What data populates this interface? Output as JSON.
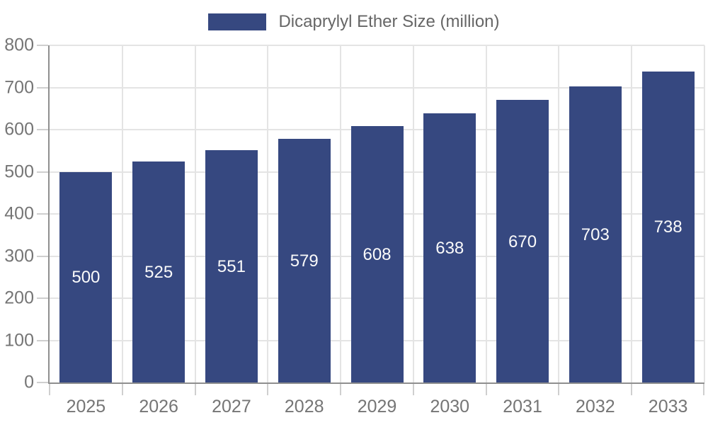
{
  "legend": {
    "label": "Dicaprylyl Ether Size (million)"
  },
  "colors": {
    "bar": "#364880",
    "axis_line": "#8f8f8f",
    "grid_line": "#e4e4e4",
    "tick_line": "#cfcfcf",
    "axis_label": "#757575",
    "legend_label": "#666666",
    "bar_label": "#fafafa",
    "background": "#ffffff"
  },
  "chart_data": {
    "type": "bar",
    "title": "",
    "legend_entries": [
      "Dicaprylyl Ether Size (million)"
    ],
    "legend_position": "top-center",
    "categories": [
      "2025",
      "2026",
      "2027",
      "2028",
      "2029",
      "2030",
      "2031",
      "2032",
      "2033"
    ],
    "values": [
      500,
      525,
      551,
      579,
      608,
      638,
      670,
      703,
      738
    ],
    "bar_value_labels": [
      "500",
      "525",
      "551",
      "579",
      "608",
      "638",
      "670",
      "703",
      "738"
    ],
    "bar_value_label_placement": "inside-center",
    "xlabel": "",
    "ylabel": "",
    "ylim": [
      0,
      800
    ],
    "yticks": [
      0,
      100,
      200,
      300,
      400,
      500,
      600,
      700,
      800
    ],
    "grid": true,
    "grid_vertical": true
  }
}
